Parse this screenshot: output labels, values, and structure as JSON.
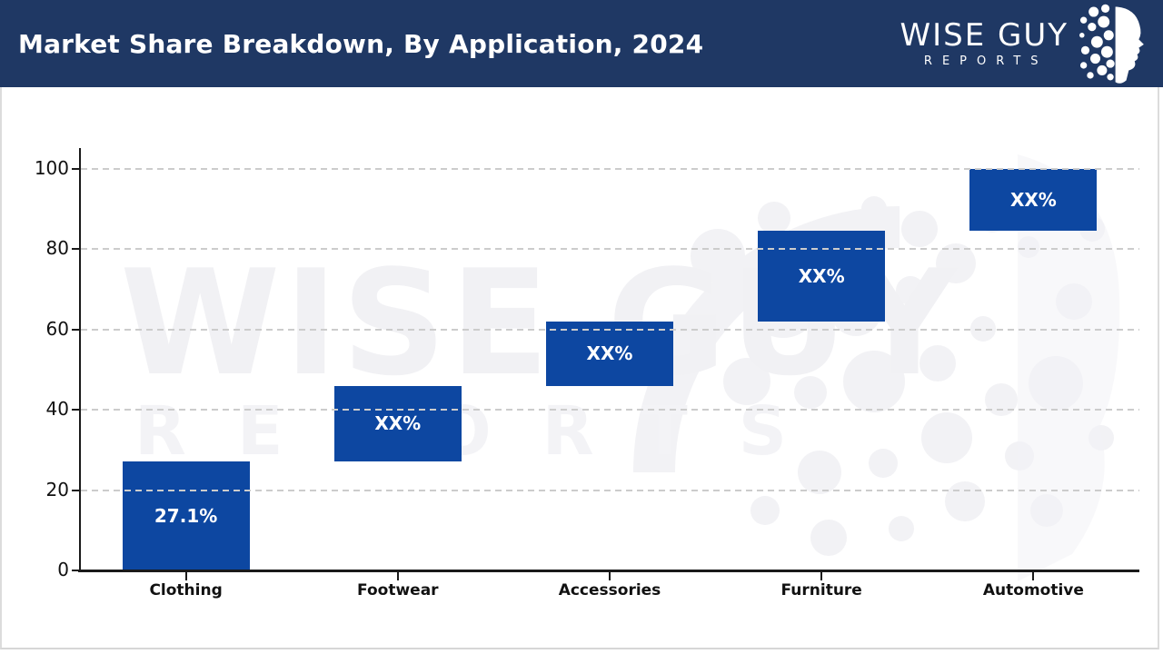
{
  "header": {
    "logo": {
      "line1": "WISE GUY",
      "line2": "REPORTS"
    }
  },
  "watermark": {
    "line1": "WISE GUY",
    "line2": "REPORTS"
  },
  "chart_data": {
    "type": "bar",
    "subtype": "waterfall",
    "title": "Market Share Breakdown, By Application, 2024",
    "categories": [
      "Clothing",
      "Footwear",
      "Accessories",
      "Furniture",
      "Automotive"
    ],
    "segments": [
      {
        "category": "Clothing",
        "start": 0,
        "end": 27.1,
        "label": "27.1%"
      },
      {
        "category": "Footwear",
        "start": 27.1,
        "end": 46.0,
        "label": "XX%"
      },
      {
        "category": "Accessories",
        "start": 46.0,
        "end": 62.0,
        "label": "XX%"
      },
      {
        "category": "Furniture",
        "start": 62.0,
        "end": 84.7,
        "label": "XX%"
      },
      {
        "category": "Automotive",
        "start": 84.7,
        "end": 100,
        "label": "XX%"
      }
    ],
    "y_ticks": [
      0,
      20,
      40,
      60,
      80,
      100
    ],
    "ylim": [
      0,
      105
    ],
    "xlabel": "",
    "ylabel": "",
    "grid": "horizontal-dashed",
    "legend": "none",
    "bar_color": "#0d47a1",
    "bar_label_color": "#ffffff"
  },
  "colors": {
    "header_bg": "#1f3864",
    "bar": "#0d47a1",
    "axis": "#1a1a1a",
    "grid": "#cccccc",
    "watermark": "#f1f1f4",
    "page_border": "#dcdcdc"
  }
}
